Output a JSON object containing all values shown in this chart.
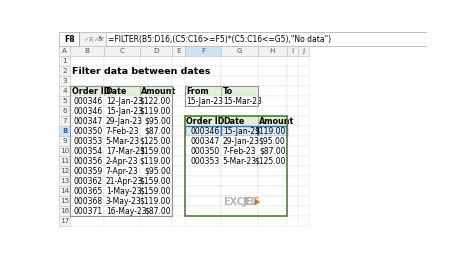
{
  "formula_bar_cell": "F8",
  "formula_bar_text": "=FILTER(B5:D16,(C5:C16>=F5)*(C5:C16<=G5),\"No data\")",
  "title": "Filter data between dates",
  "col_headers": [
    "A",
    "B",
    "C",
    "D",
    "E",
    "F",
    "G",
    "H",
    "I",
    "J"
  ],
  "row_numbers": [
    "1",
    "2",
    "3",
    "4",
    "5",
    "6",
    "7",
    "8",
    "9",
    "10",
    "11",
    "12",
    "13",
    "14",
    "15",
    "16",
    "17"
  ],
  "left_table_headers": [
    "Order ID",
    "Date",
    "Amount"
  ],
  "left_table_data": [
    [
      "000346",
      "12-Jan-23",
      "$122.00"
    ],
    [
      "000346",
      "15-Jan-23",
      "$119.00"
    ],
    [
      "000347",
      "29-Jan-23",
      "$95.00"
    ],
    [
      "000350",
      "7-Feb-23",
      "$87.00"
    ],
    [
      "000353",
      "5-Mar-23",
      "$125.00"
    ],
    [
      "000354",
      "17-Mar-23",
      "$159.00"
    ],
    [
      "000356",
      "2-Apr-23",
      "$119.00"
    ],
    [
      "000359",
      "7-Apr-23",
      "$95.00"
    ],
    [
      "000362",
      "21-Apr-23",
      "$159.00"
    ],
    [
      "000365",
      "1-May-23",
      "$159.00"
    ],
    [
      "000368",
      "3-May-23",
      "$119.00"
    ],
    [
      "000371",
      "16-May-23",
      "$87.00"
    ]
  ],
  "from_to_headers": [
    "From",
    "To"
  ],
  "from_to_values": [
    "15-Jan-23",
    "15-Mar-23"
  ],
  "right_table_headers": [
    "Order ID",
    "Date",
    "Amount"
  ],
  "right_table_data": [
    [
      "000346",
      "15-Jan-23",
      "$119.00"
    ],
    [
      "000347",
      "29-Jan-23",
      "$95.00"
    ],
    [
      "000350",
      "7-Feb-23",
      "$87.00"
    ],
    [
      "000353",
      "5-Mar-23",
      "$125.00"
    ]
  ],
  "bg_color": "#ffffff",
  "header_row_bg": "#e2efda",
  "cell_bg": "#ffffff",
  "formula_bar_bg": "#f2f2f2",
  "col_header_bg": "#f2f2f2",
  "row_header_bg": "#f2f2f2",
  "selected_col_bg": "#cfe2f3",
  "selected_cell_bg": "#dce9f5",
  "selected_cell_border": "#2e75b6",
  "highlight_cell_border": "#538135",
  "title_fontsize": 6.8,
  "data_fontsize": 5.5,
  "header_fontsize": 5.8,
  "formula_fontsize": 5.5,
  "col_label_fontsize": 5.2,
  "exceljet_text_color_excel": "#808080",
  "exceljet_text_color_jet": "#808080",
  "exceljet_icon_color": "#e8640a"
}
